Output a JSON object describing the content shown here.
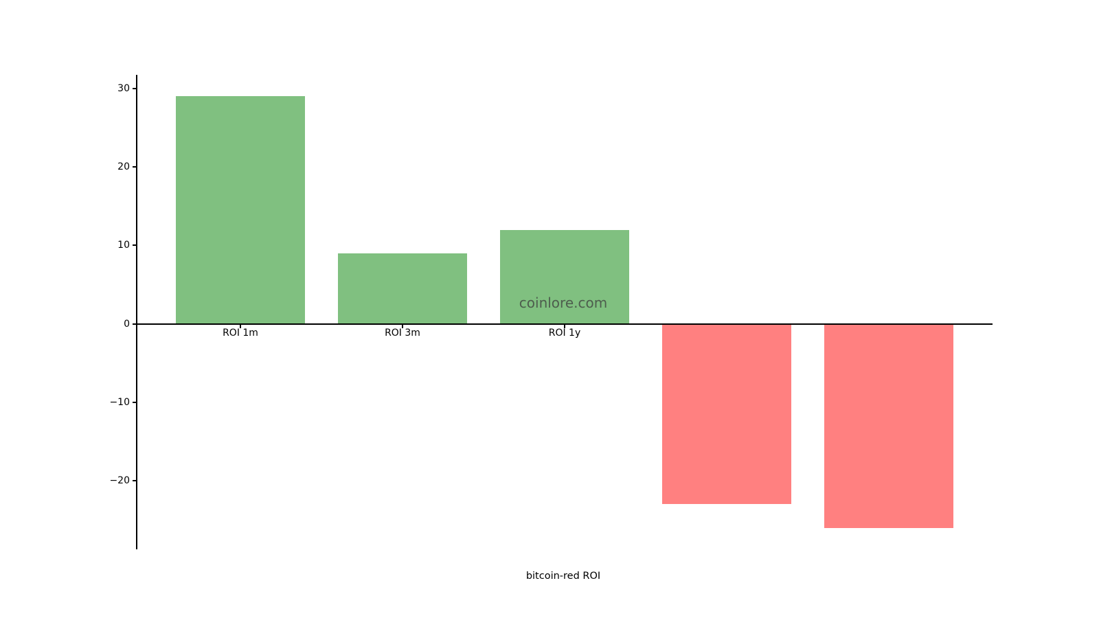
{
  "page": {
    "background_color": "#ffffff"
  },
  "chart_data": {
    "type": "bar",
    "title": "bitcoin-red ROI",
    "watermark": "coinlore.com",
    "categories": [
      "ROI 1m",
      "ROI 3m",
      "ROI 1y",
      "",
      ""
    ],
    "values": [
      29,
      9,
      12,
      -23,
      -26
    ],
    "series": [
      {
        "name": "bitcoin-red ROI",
        "values": [
          29,
          9,
          12,
          -23,
          -26
        ]
      }
    ],
    "yticks": [
      30,
      20,
      10,
      0,
      -10,
      -20
    ],
    "ytick_labels": [
      "30",
      "20",
      "10",
      "0",
      "−10",
      "−20"
    ],
    "ylim": [
      -28.75,
      31.75
    ],
    "xlim": [
      -0.64,
      4.64
    ],
    "bar_width": 0.8,
    "grid": false,
    "legend": false,
    "xlabel": "bitcoin-red ROI",
    "ylabel": "",
    "positive_color": "#80c080",
    "negative_color": "#ff8080",
    "axis_color": "#000000",
    "label_color": "#000000",
    "watermark_color": "#3c3c3c"
  }
}
